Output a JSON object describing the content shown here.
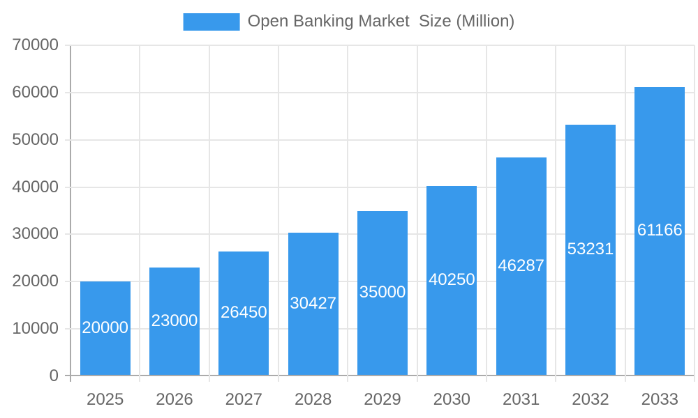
{
  "chart_data": {
    "type": "bar",
    "title": "Open Banking Market  Size (Million)",
    "legend_position": "top",
    "categories": [
      "2025",
      "2026",
      "2027",
      "2028",
      "2029",
      "2030",
      "2031",
      "2032",
      "2033"
    ],
    "series": [
      {
        "name": "Open Banking Market  Size (Million)",
        "values": [
          20000,
          23000,
          26450,
          30427,
          35000,
          40250,
          46287,
          53231,
          61166
        ]
      }
    ],
    "value_labels": [
      "20000",
      "23000",
      "26450",
      "30427",
      "35000",
      "40250",
      "46287",
      "53231",
      "61166"
    ],
    "xlabel": "",
    "ylabel": "",
    "ylim": [
      0,
      70000
    ],
    "ytick_step": 10000,
    "yticks": [
      "0",
      "10000",
      "20000",
      "30000",
      "40000",
      "50000",
      "60000",
      "70000"
    ],
    "grid": true,
    "colors": {
      "bar": "#3899ec",
      "value_label": "#ffffff",
      "grid": "#e6e6e6",
      "axis": "#ababab",
      "tick_label": "#666666",
      "legend_text": "#666666",
      "background": "#ffffff"
    }
  }
}
